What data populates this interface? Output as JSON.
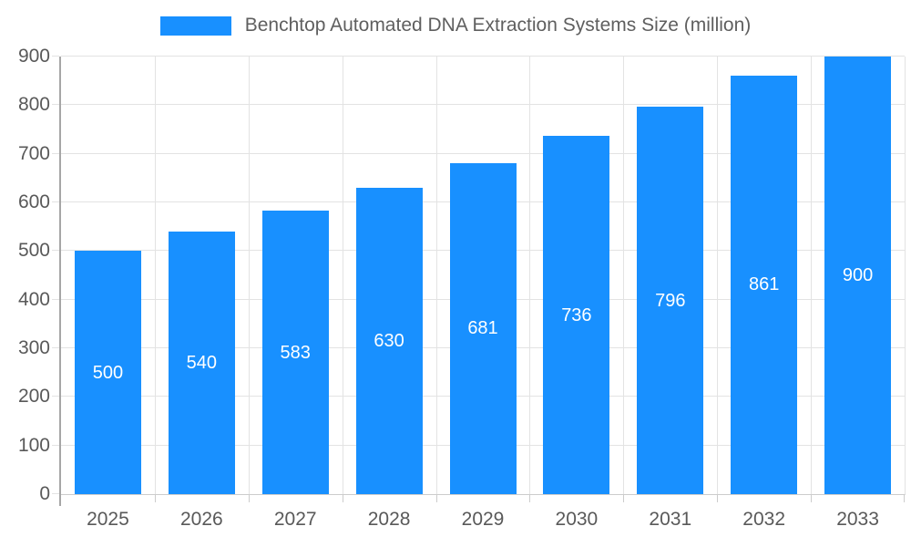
{
  "chart_data": {
    "type": "bar",
    "title": "Benchtop Automated DNA Extraction Systems Size (million)",
    "categories": [
      "2025",
      "2026",
      "2027",
      "2028",
      "2029",
      "2030",
      "2031",
      "2032",
      "2033"
    ],
    "values": [
      500,
      540,
      583,
      630,
      681,
      736,
      796,
      861,
      900
    ],
    "xlabel": "",
    "ylabel": "",
    "ylim": [
      0,
      900
    ],
    "yticks": [
      0,
      100,
      200,
      300,
      400,
      500,
      600,
      700,
      800,
      900
    ],
    "grid": true,
    "legend_position": "top",
    "bar_labels_visible": true,
    "colors": {
      "bar": "#1890ff",
      "bar_label_text": "#ffffff",
      "grid": "#e3e3e3",
      "axis_line": "#a6a6a6",
      "axis_bottom_line": "#cccccc",
      "tick": "#cccccc",
      "axis_text": "#595959",
      "title_text": "#5f5f5f"
    }
  }
}
